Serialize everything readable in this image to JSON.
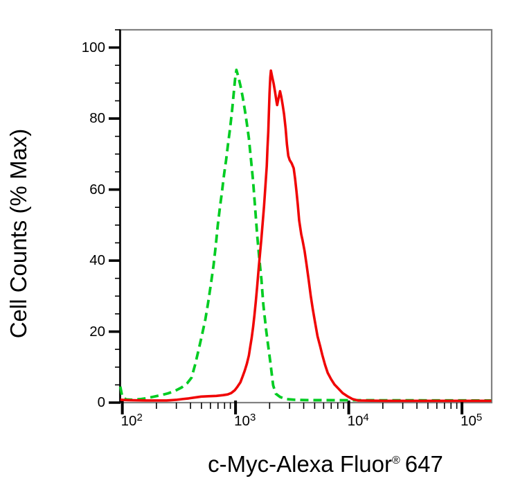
{
  "page": {
    "background": "#ffffff"
  },
  "chart_data": {
    "type": "line",
    "subtype": "flow-cytometry-overlay-histogram",
    "title": "",
    "xlabel": "c-Myc-Alexa Fluor® 647",
    "xlabel_parts": {
      "main": "c-Myc-Alexa Fluor",
      "registered": "®",
      "suffix": "647"
    },
    "ylabel": "Cell Counts (% Max)",
    "x_scale": "log",
    "x_axis_range": [
      95,
      183000
    ],
    "y_axis_range": [
      0,
      105
    ],
    "x_major_ticks": [
      100,
      1000,
      10000,
      100000
    ],
    "x_tick_label_base": "10",
    "x_tick_label_exponents": [
      2,
      3,
      4,
      5
    ],
    "x_minor_ticks_per_decade": [
      2,
      3,
      4,
      5,
      6,
      7,
      8,
      9
    ],
    "y_major_ticks": [
      0,
      20,
      40,
      60,
      80,
      100
    ],
    "y_minor_tick_step": 5,
    "grid": false,
    "legend_position": "none",
    "frame_color": "#808080",
    "tick_color": "#000000",
    "text_color": "#000000",
    "series": [
      {
        "name": "green-dashed-histogram",
        "color": "#00cc22",
        "line_style": "dashed",
        "peak": {
          "x": 1018,
          "y": 93.7
        },
        "points": [
          [
            96,
            4.5
          ],
          [
            100,
            1.6
          ],
          [
            108,
            0.9
          ],
          [
            122,
            0.8
          ],
          [
            146,
            1.0
          ],
          [
            168,
            1.3
          ],
          [
            191,
            1.7
          ],
          [
            220,
            2.1
          ],
          [
            253,
            2.6
          ],
          [
            291,
            3.3
          ],
          [
            335,
            4.3
          ],
          [
            375,
            5.5
          ],
          [
            408,
            7.0
          ],
          [
            438,
            10.5
          ],
          [
            470,
            14.6
          ],
          [
            504,
            18.9
          ],
          [
            541,
            23.4
          ],
          [
            572,
            28.1
          ],
          [
            605,
            33.2
          ],
          [
            640,
            38.7
          ],
          [
            668,
            44.1
          ],
          [
            697,
            50.0
          ],
          [
            727,
            54.9
          ],
          [
            758,
            59.3
          ],
          [
            791,
            64.2
          ],
          [
            825,
            68.3
          ],
          [
            860,
            73.0
          ],
          [
            897,
            77.5
          ],
          [
            936,
            82.8
          ],
          [
            963,
            86.9
          ],
          [
            990,
            91.0
          ],
          [
            1018,
            93.7
          ],
          [
            1062,
            91.6
          ],
          [
            1107,
            89.2
          ],
          [
            1156,
            86.1
          ],
          [
            1205,
            82.6
          ],
          [
            1258,
            78.7
          ],
          [
            1311,
            74.4
          ],
          [
            1368,
            68.5
          ],
          [
            1429,
            62.3
          ],
          [
            1489,
            54.9
          ],
          [
            1553,
            47.1
          ],
          [
            1622,
            40.4
          ],
          [
            1690,
            34.9
          ],
          [
            1762,
            27.5
          ],
          [
            1866,
            20.3
          ],
          [
            1945,
            15.8
          ],
          [
            2028,
            11.5
          ],
          [
            2147,
            4.9
          ],
          [
            2270,
            2.5
          ],
          [
            2471,
            1.6
          ],
          [
            2766,
            1.0
          ],
          [
            3319,
            0.8
          ],
          [
            4397,
            0.7
          ],
          [
            182000,
            0.6
          ]
        ]
      },
      {
        "name": "red-solid-histogram",
        "color": "#f00505",
        "line_style": "solid",
        "peak": {
          "x": 2053,
          "y": 93.5
        },
        "points": [
          [
            96,
            0.8
          ],
          [
            113,
            0.7
          ],
          [
            161,
            0.6
          ],
          [
            246,
            0.6
          ],
          [
            304,
            0.8
          ],
          [
            340,
            1.0
          ],
          [
            386,
            1.2
          ],
          [
            450,
            1.5
          ],
          [
            497,
            1.7
          ],
          [
            572,
            1.8
          ],
          [
            677,
            1.9
          ],
          [
            779,
            2.1
          ],
          [
            852,
            2.3
          ],
          [
            916,
            2.7
          ],
          [
            985,
            3.5
          ],
          [
            1042,
            4.5
          ],
          [
            1103,
            5.7
          ],
          [
            1156,
            7.4
          ],
          [
            1205,
            9.0
          ],
          [
            1258,
            10.9
          ],
          [
            1311,
            13.3
          ],
          [
            1349,
            15.8
          ],
          [
            1387,
            18.2
          ],
          [
            1429,
            21.3
          ],
          [
            1468,
            24.6
          ],
          [
            1510,
            28.5
          ],
          [
            1553,
            32.8
          ],
          [
            1596,
            37.3
          ],
          [
            1642,
            41.6
          ],
          [
            1690,
            46.1
          ],
          [
            1736,
            50.6
          ],
          [
            1786,
            55.4
          ],
          [
            1836,
            61.1
          ],
          [
            1888,
            66.6
          ],
          [
            1914,
            71.5
          ],
          [
            1945,
            76.3
          ],
          [
            1968,
            81.2
          ],
          [
            1996,
            87.1
          ],
          [
            2028,
            91.6
          ],
          [
            2053,
            93.5
          ],
          [
            2112,
            91.6
          ],
          [
            2172,
            89.8
          ],
          [
            2234,
            87.5
          ],
          [
            2297,
            84.9
          ],
          [
            2330,
            83.8
          ],
          [
            2397,
            85.7
          ],
          [
            2471,
            87.7
          ],
          [
            2535,
            86.1
          ],
          [
            2609,
            83.8
          ],
          [
            2683,
            81.2
          ],
          [
            2766,
            77.3
          ],
          [
            2841,
            72.8
          ],
          [
            2922,
            69.5
          ],
          [
            3006,
            68.3
          ],
          [
            3132,
            67.4
          ],
          [
            3264,
            66.0
          ],
          [
            3356,
            63.1
          ],
          [
            3448,
            59.7
          ],
          [
            3548,
            55.8
          ],
          [
            3647,
            51.3
          ],
          [
            3804,
            47.4
          ],
          [
            3910,
            45.7
          ],
          [
            4074,
            42.6
          ],
          [
            4246,
            38.7
          ],
          [
            4425,
            34.6
          ],
          [
            4615,
            30.1
          ],
          [
            4810,
            26.4
          ],
          [
            5012,
            23.0
          ],
          [
            5297,
            18.7
          ],
          [
            5598,
            15.8
          ],
          [
            5834,
            13.5
          ],
          [
            6166,
            10.7
          ],
          [
            6516,
            8.4
          ],
          [
            6983,
            6.6
          ],
          [
            7482,
            5.1
          ],
          [
            8128,
            3.9
          ],
          [
            8831,
            2.7
          ],
          [
            9727,
            1.8
          ],
          [
            10810,
            1.0
          ],
          [
            12023,
            0.6
          ],
          [
            21380,
            0.5
          ],
          [
            182000,
            0.5
          ]
        ]
      }
    ]
  }
}
